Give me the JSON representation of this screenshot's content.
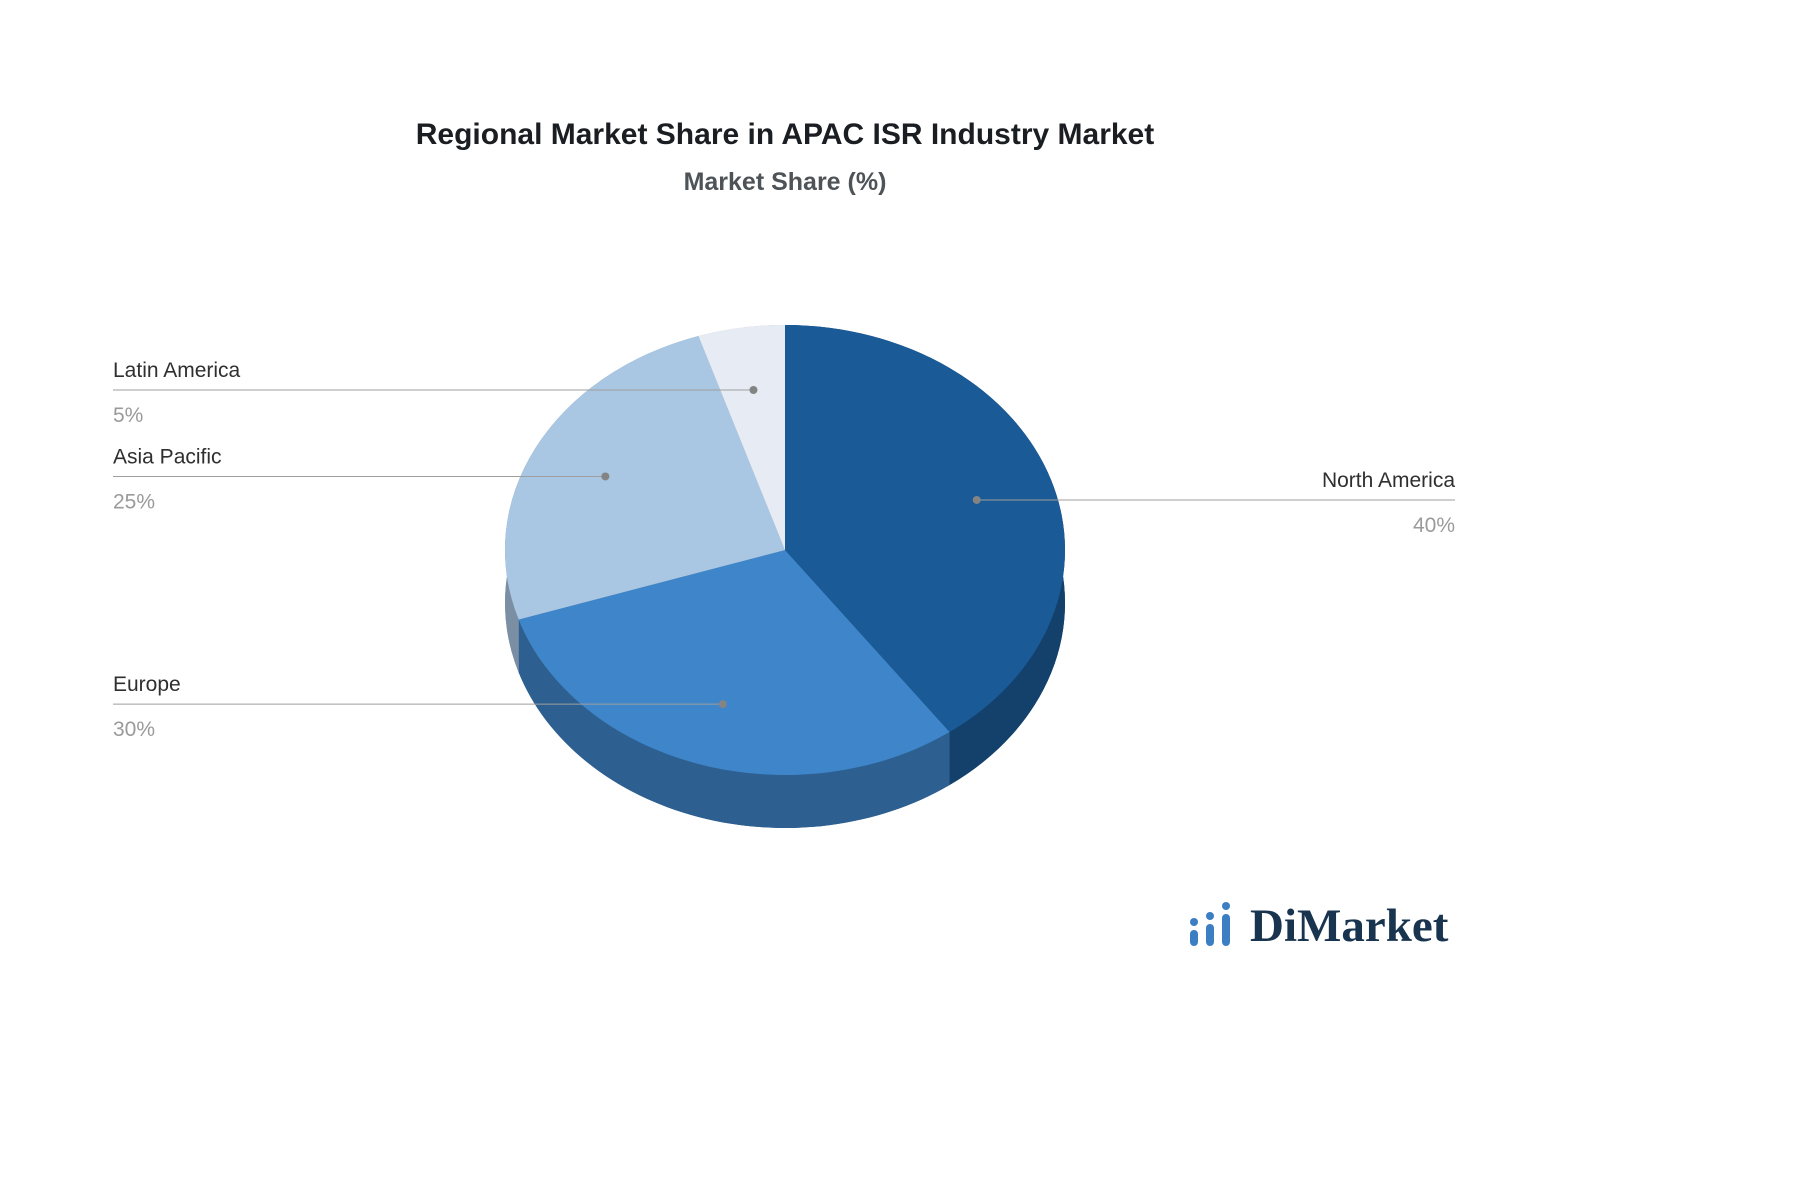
{
  "header": {
    "title": "Regional Market Share in APAC ISR Industry Market",
    "subtitle": "Market Share (%)"
  },
  "chart_data": {
    "type": "pie",
    "title": "Regional Market Share in APAC ISR Industry Market",
    "subtitle": "Market Share (%)",
    "unit": "%",
    "effect": "3d",
    "direction": "clockwise",
    "start_angle_deg": 0,
    "legend_position": "none",
    "labels": "leader-lines",
    "slices": [
      {
        "label": "North America",
        "value": 40,
        "display": "40%",
        "color": "#1a5a96"
      },
      {
        "label": "Europe",
        "value": 30,
        "display": "30%",
        "color": "#3e86c9"
      },
      {
        "label": "Asia Pacific",
        "value": 25,
        "display": "25%",
        "color": "#a9c6e3"
      },
      {
        "label": "Latin America",
        "value": 5,
        "display": "5%",
        "color": "#e7ecf4"
      }
    ],
    "label_name_color": "#2f2f2f",
    "label_value_color": "#9a9a9a",
    "leader_line_color": "#9e9e9e"
  },
  "branding": {
    "logo_text": "DiMarket",
    "logo_icon": "bar-chart-icon",
    "logo_text_color": "#19344f",
    "logo_icon_color": "#3b7ec2"
  }
}
